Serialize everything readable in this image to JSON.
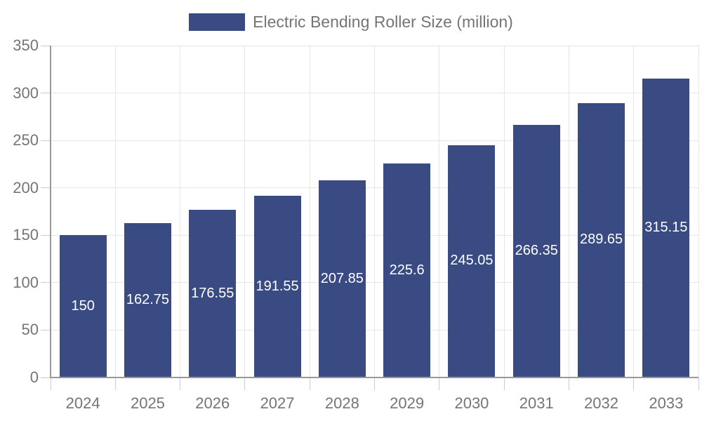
{
  "chart_data": {
    "type": "bar",
    "title": "Electric Bending Roller Size (million)",
    "categories": [
      "2024",
      "2025",
      "2026",
      "2027",
      "2028",
      "2029",
      "2030",
      "2031",
      "2032",
      "2033"
    ],
    "values": [
      150,
      162.75,
      176.55,
      191.55,
      207.85,
      225.6,
      245.05,
      266.35,
      289.65,
      315.15
    ],
    "value_labels": [
      "150",
      "162.75",
      "176.55",
      "191.55",
      "207.85",
      "225.6",
      "245.05",
      "266.35",
      "289.65",
      "315.15"
    ],
    "series_name": "Electric Bending Roller Size (million)",
    "xlabel": "",
    "ylabel": "",
    "ylim": [
      0,
      350
    ],
    "ytick_step": 50,
    "ytick_labels": [
      "0",
      "50",
      "100",
      "150",
      "200",
      "250",
      "300",
      "350"
    ],
    "grid": true,
    "legend_position": "top-center",
    "colors": {
      "bar": "#394b82",
      "value_label": "#ffffff",
      "axis_text": "#757575",
      "legend_text": "#757575",
      "gridline": "#e6e6e6",
      "axis_line": "#999999",
      "tick": "#cccccc",
      "background": "#ffffff"
    }
  }
}
